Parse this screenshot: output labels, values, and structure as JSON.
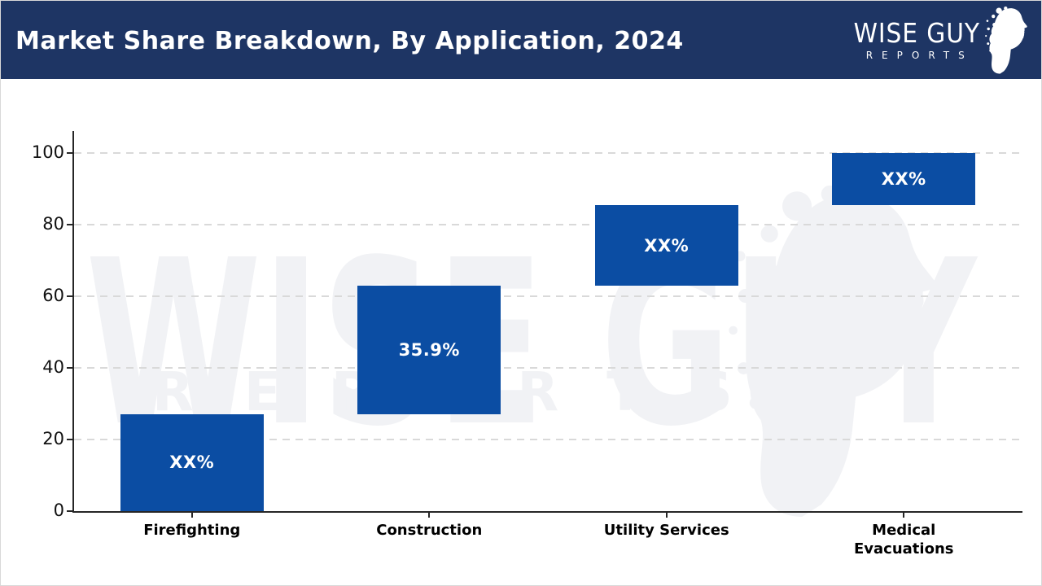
{
  "header": {
    "title": "Market Share Breakdown, By Application, 2024",
    "logo": {
      "line1": "WISE GUY",
      "line2": "REPORTS"
    }
  },
  "watermark": {
    "line1": "WISE GUY",
    "line2": "REPORTS"
  },
  "chart_data": {
    "type": "bar",
    "subtype": "floating-waterfall-percent",
    "title": "Market Share Breakdown, By Application, 2024",
    "categories": [
      "Firefighting",
      "Construction",
      "Utility Services",
      "Medical Evacuations"
    ],
    "bars": [
      {
        "category": "Firefighting",
        "label": "XX%",
        "start": 0,
        "end": 27.1
      },
      {
        "category": "Construction",
        "label": "35.9%",
        "start": 27.1,
        "end": 63.0
      },
      {
        "category": "Utility Services",
        "label": "XX%",
        "start": 63.0,
        "end": 85.4
      },
      {
        "category": "Medical Evacuations",
        "label": "XX%",
        "start": 85.4,
        "end": 100.0
      }
    ],
    "ylim": [
      0,
      100
    ],
    "yticks": [
      0,
      20,
      40,
      60,
      80,
      100
    ],
    "grid": "dashed-horizontal",
    "legend": "none",
    "bar_color": "#0b4da3",
    "bar_label_color": "#ffffff",
    "axis_color": "#262626",
    "gridline_color": "#d9d9d9",
    "header_color": "#1e3564",
    "watermark_color": "#f1f2f5"
  }
}
